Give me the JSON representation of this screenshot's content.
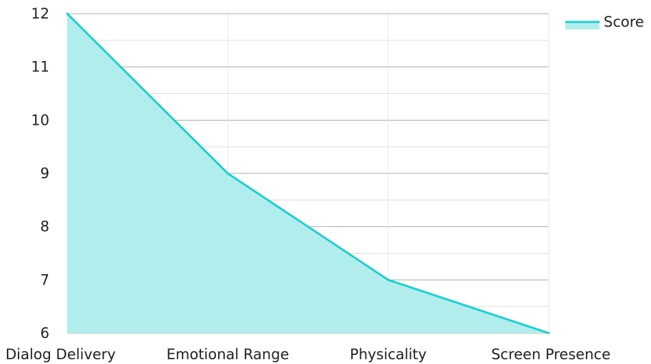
{
  "chart_data": {
    "type": "area",
    "categories": [
      "Dialog Delivery",
      "Emotional Range",
      "Physicality",
      "Screen Presence"
    ],
    "series": [
      {
        "name": "Score",
        "values": [
          12,
          9,
          7,
          6
        ]
      }
    ],
    "ylim": [
      6,
      12
    ],
    "yticks": [
      "6",
      "7",
      "8",
      "9",
      "10",
      "11",
      "12"
    ],
    "grid": true,
    "legend_position": "top-right",
    "colors": {
      "line": "#1bcfcf",
      "fill": "#b2eded",
      "grid": "#b5b5b5",
      "text": "#222222"
    }
  }
}
